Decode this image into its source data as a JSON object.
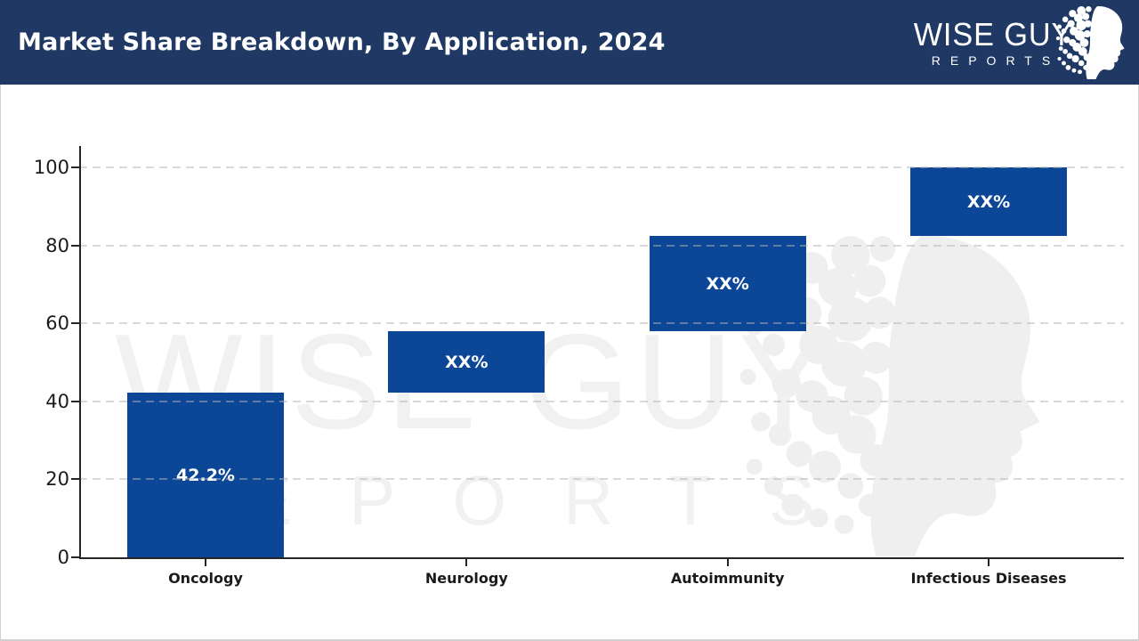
{
  "header": {
    "title": "Market Share Breakdown, By Application, 2024",
    "bg_color": "#1f3864",
    "logo": {
      "line1": "WISE GUY",
      "line2": "REPORTS"
    }
  },
  "watermark": {
    "line1": "WISE GUY",
    "line2": "REPORTS"
  },
  "chart_data": {
    "type": "bar",
    "subtype": "waterfall",
    "title": "Market Share Breakdown, By Application, 2024",
    "categories": [
      "Oncology",
      "Neurology",
      "Autoimmunity",
      "Infectious Diseases"
    ],
    "segments": [
      {
        "category": "Oncology",
        "start": 0,
        "end": 42.2,
        "label": "42.2%"
      },
      {
        "category": "Neurology",
        "start": 42.2,
        "end": 58,
        "label": "XX%"
      },
      {
        "category": "Autoimmunity",
        "start": 58,
        "end": 82.4,
        "label": "XX%"
      },
      {
        "category": "Infectious Diseases",
        "start": 82.4,
        "end": 100,
        "label": "XX%"
      }
    ],
    "yticks": [
      0,
      20,
      40,
      60,
      80,
      100
    ],
    "ylim": [
      0,
      105
    ],
    "xlabel": "",
    "ylabel": "",
    "grid": "horizontal-dashed",
    "legend": "none",
    "bar_color": "#0b4697",
    "axis_color": "#262626",
    "grid_color": "#d9d9d9",
    "bar_label_color": "#ffffff"
  }
}
